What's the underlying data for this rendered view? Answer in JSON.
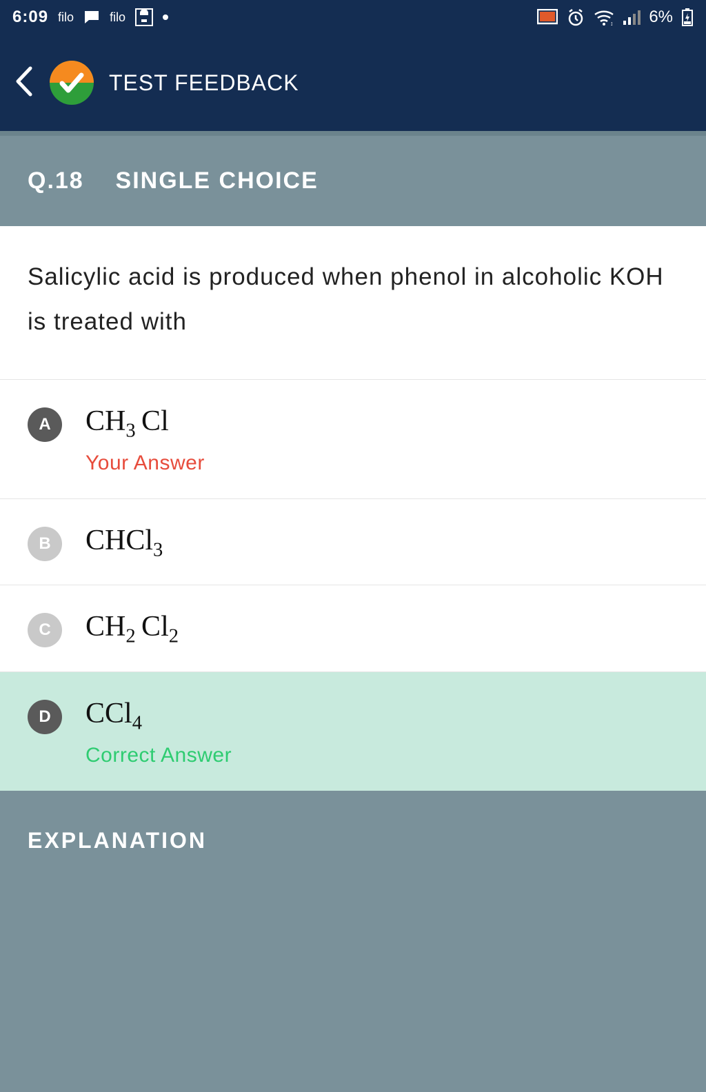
{
  "status_bar": {
    "time": "6:09",
    "left_items": [
      {
        "type": "text",
        "value": "filo"
      },
      {
        "type": "icon",
        "name": "chat-icon"
      },
      {
        "type": "text",
        "value": "filo"
      },
      {
        "type": "icon",
        "name": "app-square-icon"
      },
      {
        "type": "dot"
      }
    ],
    "right_items": [
      {
        "type": "icon",
        "name": "cast-icon"
      },
      {
        "type": "icon",
        "name": "alarm-icon"
      },
      {
        "type": "icon",
        "name": "wifi-icon"
      },
      {
        "type": "icon",
        "name": "signal-icon"
      }
    ],
    "battery_text": "6%",
    "colors": {
      "bg": "#142d52",
      "fg": "#ffffff"
    }
  },
  "header": {
    "title": "TEST FEEDBACK",
    "logo_colors": {
      "top": "#f58a1f",
      "bottom": "#2e9e3a",
      "check": "#ffffff"
    },
    "bg": "#142d52"
  },
  "question_header": {
    "number_label": "Q.18",
    "type_label": "SINGLE CHOICE",
    "bg": "#7a919a",
    "fg": "#ffffff"
  },
  "question": {
    "text": "Salicylic acid is produced when phenol in alcoholic KOH is treated with"
  },
  "options": [
    {
      "letter": "A",
      "formula_html": "CH<sub>3</sub> Cl",
      "badge_bg": "#5a5a5a",
      "note": "Your Answer",
      "note_class": "note-wrong",
      "row_class": ""
    },
    {
      "letter": "B",
      "formula_html": "CHCl<sub>3</sub>",
      "badge_bg": "#c9c9c9",
      "note": null,
      "note_class": "",
      "row_class": ""
    },
    {
      "letter": "C",
      "formula_html": "CH<sub>2</sub> Cl<sub>2</sub>",
      "badge_bg": "#c9c9c9",
      "note": null,
      "note_class": "",
      "row_class": ""
    },
    {
      "letter": "D",
      "formula_html": "CCl<sub>4</sub>",
      "badge_bg": "#5a5a5a",
      "note": "Correct Answer",
      "note_class": "note-correct",
      "row_class": "correct"
    }
  ],
  "explanation": {
    "title": "EXPLANATION",
    "bg": "#7a919a"
  },
  "colors": {
    "correct_row_bg": "#c8eadd",
    "wrong_text": "#e74c3c",
    "correct_text": "#2ecc71"
  }
}
